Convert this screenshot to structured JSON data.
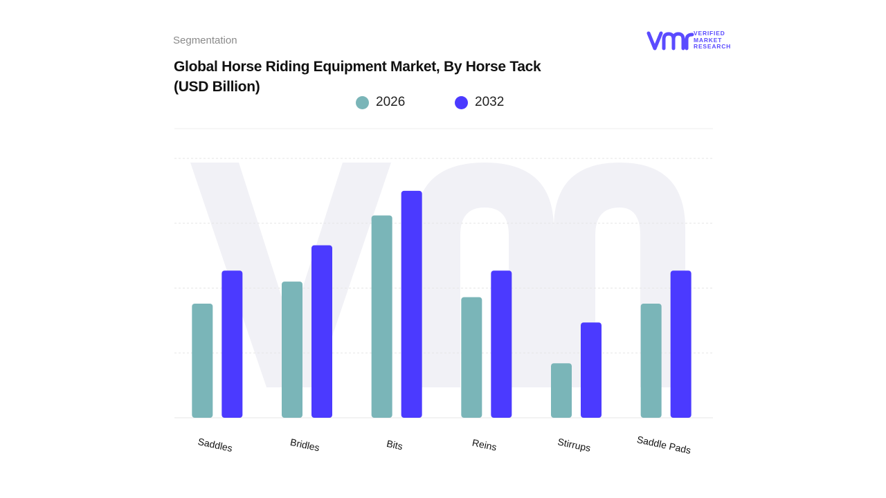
{
  "header": {
    "segment_label": "Segmentation",
    "title_line1": "Global Horse Riding Equipment Market, By Horse Tack",
    "title_line2": "(USD Billion)"
  },
  "logo": {
    "line1": "VERIFIED",
    "line2": "MARKET",
    "line3": "RESEARCH"
  },
  "colors": {
    "series_2026": "#7ab5b8",
    "series_2032": "#4b3aff",
    "grid": "#e6e6e6",
    "watermark": "#f1f1f6"
  },
  "chart_data": {
    "type": "bar",
    "title": "Global Horse Riding Equipment Market, By Horse Tack (USD Billion)",
    "categories": [
      "Saddles",
      "Bridles",
      "Bits",
      "Reins",
      "Stirrups",
      "Saddle Pads"
    ],
    "series": [
      {
        "name": "2026",
        "values": [
          1.76,
          2.1,
          3.12,
          1.86,
          0.84,
          1.76
        ]
      },
      {
        "name": "2032",
        "values": [
          2.27,
          2.66,
          3.5,
          2.27,
          1.47,
          2.27
        ]
      }
    ],
    "ylim": [
      0,
      4
    ],
    "grid": true,
    "y_tick_labels_shown": false,
    "legend_position": "top-center"
  }
}
